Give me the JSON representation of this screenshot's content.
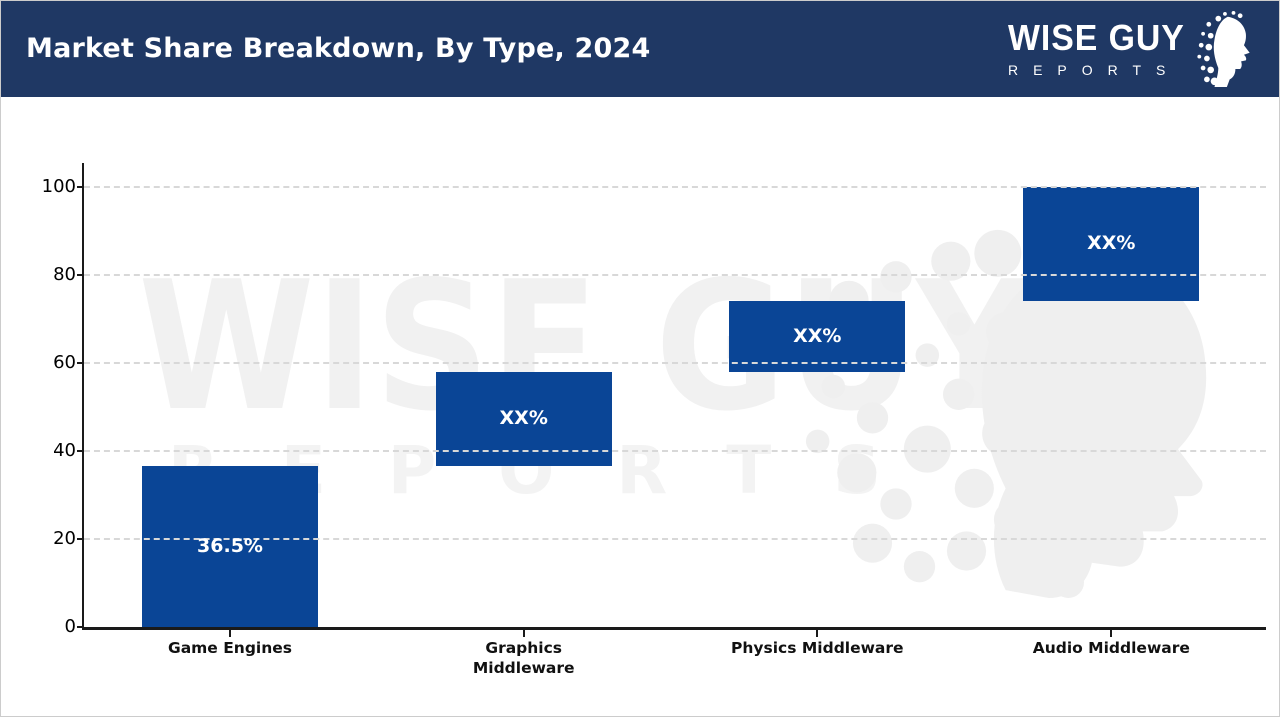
{
  "header": {
    "title": "Market Share Breakdown, By Type, 2024",
    "bg_color": "#1f3864",
    "logo": {
      "name_line": "WISE GUY",
      "sub_line": "REPORTS",
      "face_icon": "dotted-head-profile"
    }
  },
  "watermark": {
    "name_line": "WISE GUY",
    "sub_line": "REPORTS",
    "face_icon": "dotted-head-profile"
  },
  "chart_data": {
    "type": "bar",
    "subtype": "waterfall",
    "title": "Market Share Breakdown, By Type, 2024",
    "categories": [
      "Game Engines",
      "Graphics\nMiddleware",
      "Physics Middleware",
      "Audio Middleware"
    ],
    "bars": [
      {
        "category": "Game Engines",
        "label": "36.5%",
        "start": 0,
        "end": 36.5
      },
      {
        "category": "Graphics\nMiddleware",
        "label": "XX%",
        "start": 36.5,
        "end": 58
      },
      {
        "category": "Physics Middleware",
        "label": "XX%",
        "start": 58,
        "end": 74
      },
      {
        "category": "Audio Middleware",
        "label": "XX%",
        "start": 74,
        "end": 100
      }
    ],
    "xlabel": "",
    "ylabel": "",
    "ylim": [
      0,
      100
    ],
    "yticks": [
      0,
      20,
      40,
      60,
      80,
      100
    ],
    "grid": "horizontal-dashed",
    "legend": "none",
    "bar_color": "#0a4596",
    "bar_label_color": "#ffffff",
    "axis_color": "#1a1a1a",
    "gridline_color": "#d8d8d8"
  }
}
